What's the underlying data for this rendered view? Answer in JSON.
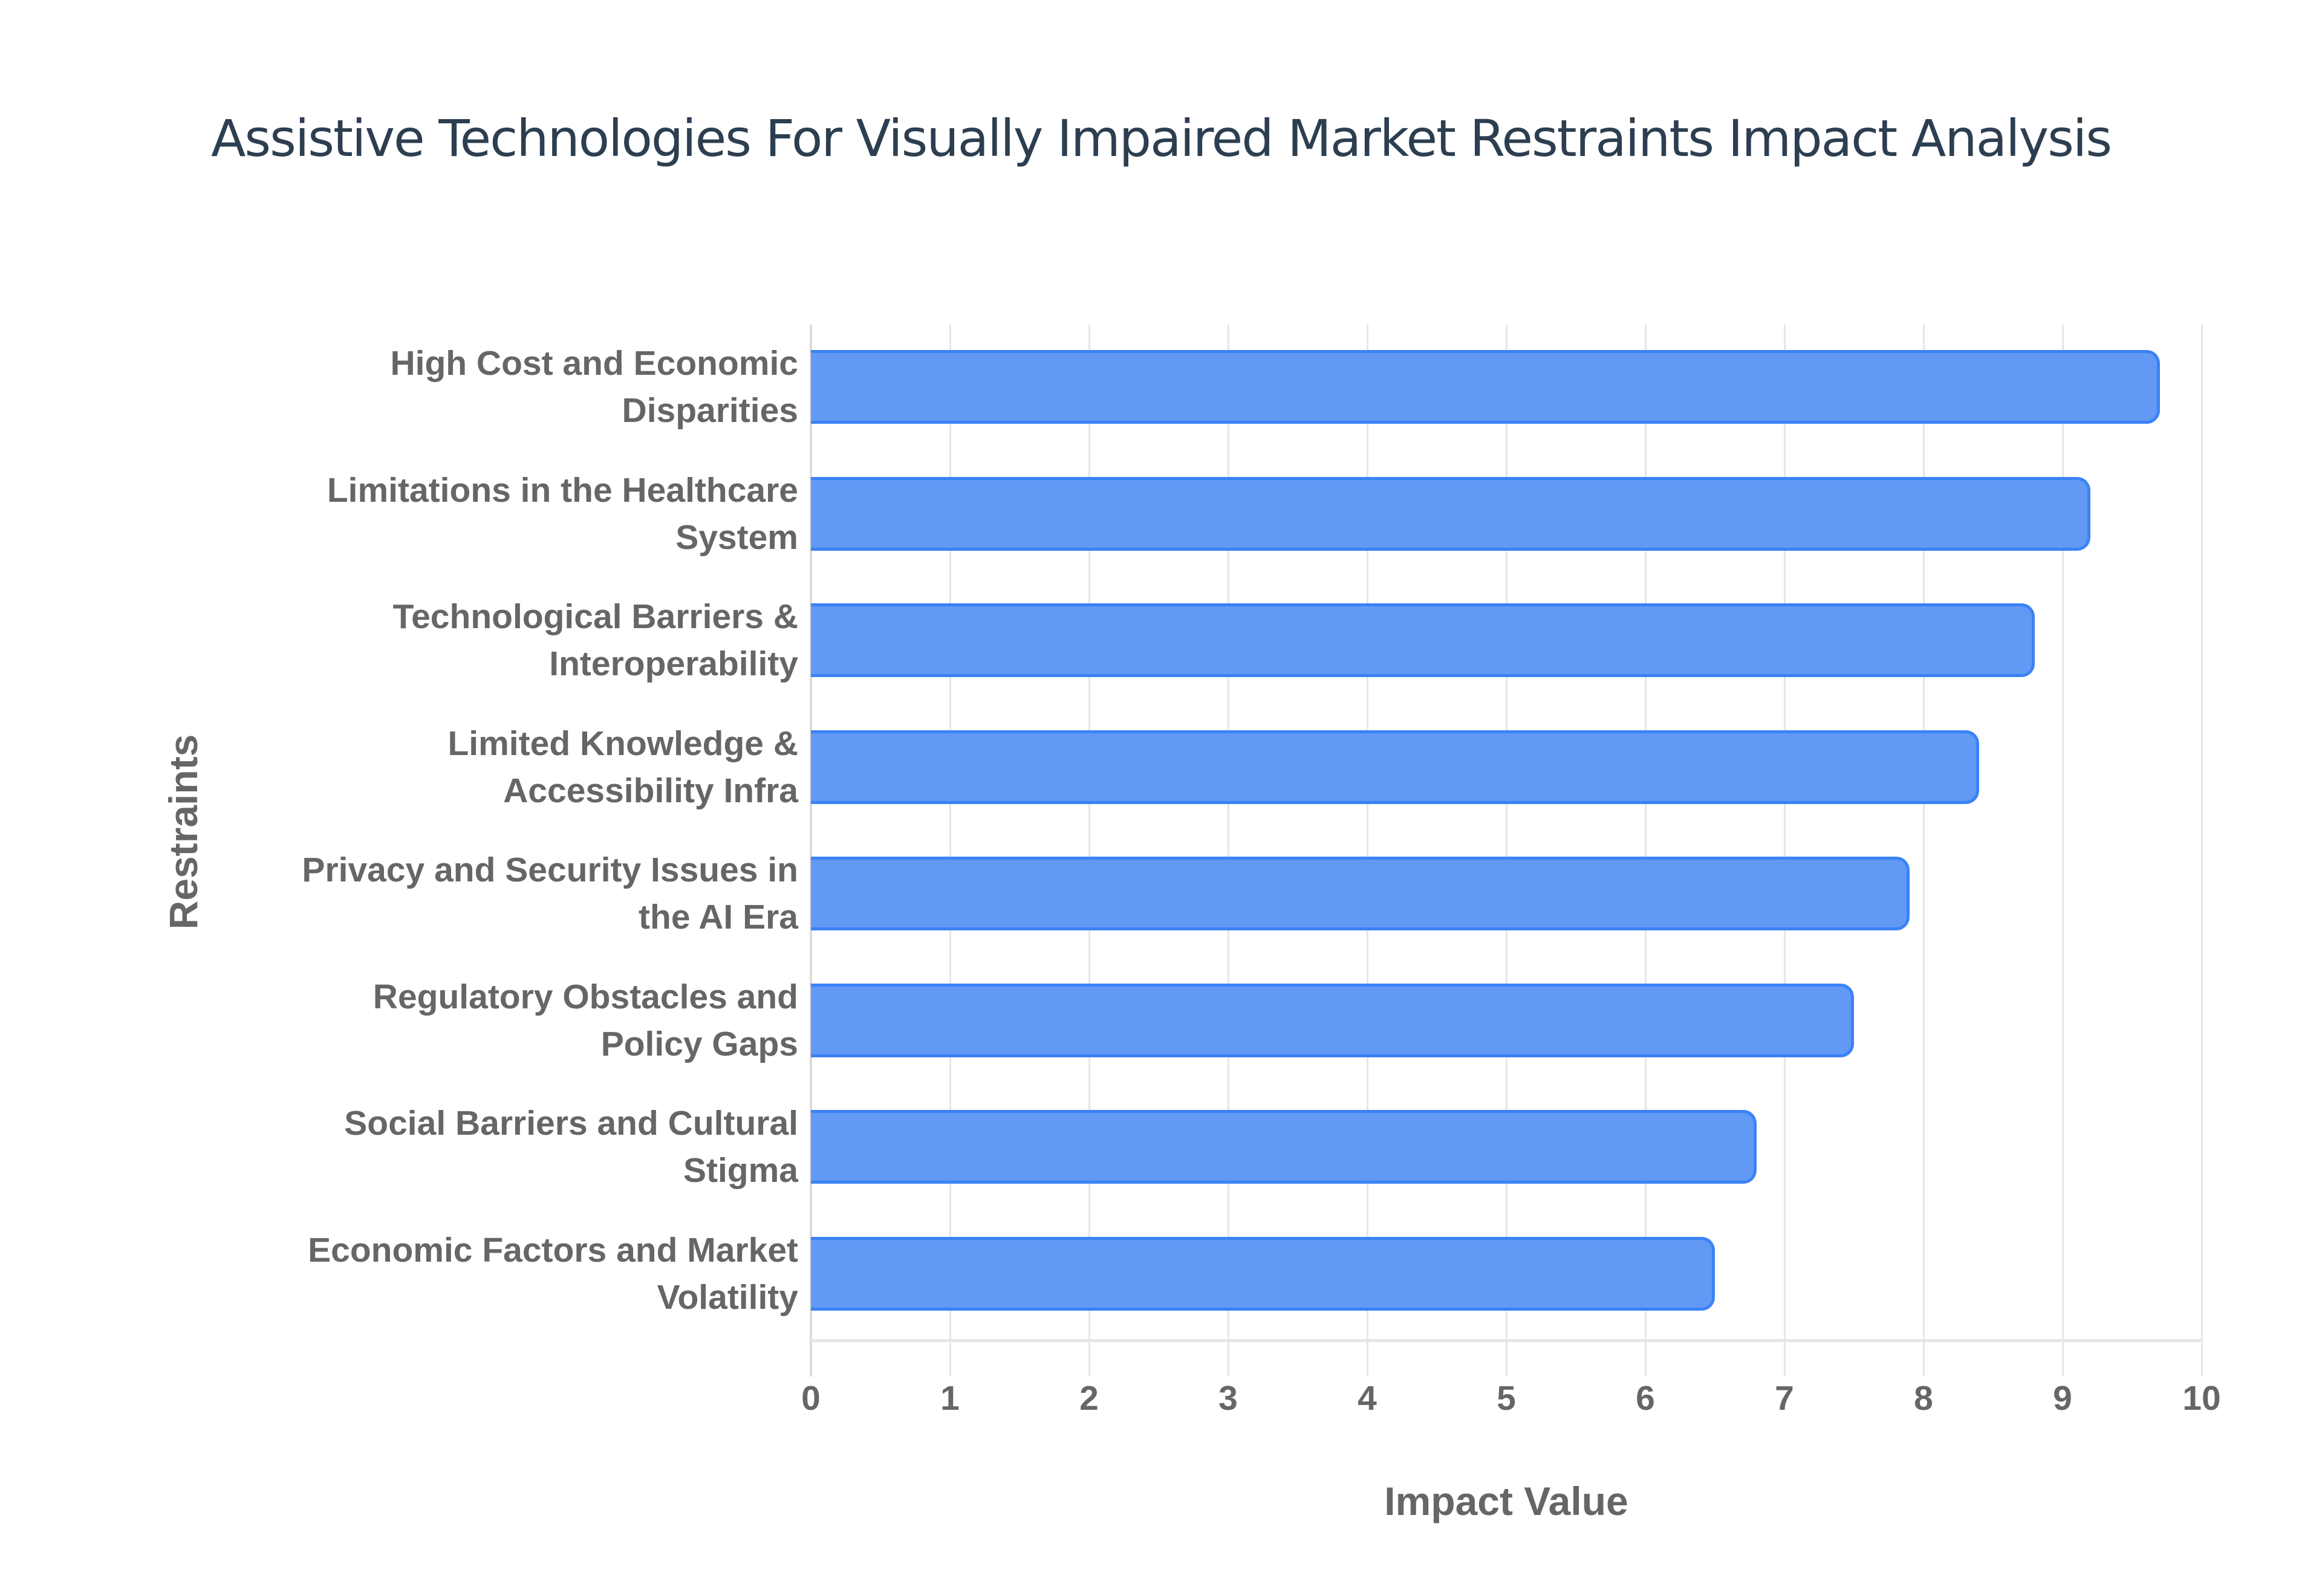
{
  "title": "Assistive Technologies For Visually Impaired Market Restraints Impact Analysis",
  "x_axis": {
    "title": "Impact Value",
    "ticks": [
      "0",
      "1",
      "2",
      "3",
      "4",
      "5",
      "6",
      "7",
      "8",
      "9",
      "10"
    ]
  },
  "y_axis": {
    "title": "Restraints"
  },
  "labels": [
    [
      "High Cost and Economic",
      "Disparities"
    ],
    [
      "Limitations in the Healthcare",
      "System"
    ],
    [
      "Technological Barriers &",
      "Interoperability"
    ],
    [
      "Limited Knowledge &",
      "Accessibility Infra"
    ],
    [
      "Privacy and Security Issues in",
      "the AI Era"
    ],
    [
      "Regulatory Obstacles and",
      "Policy Gaps"
    ],
    [
      "Social Barriers and Cultural",
      "Stigma"
    ],
    [
      "Economic Factors and Market",
      "Volatility"
    ]
  ],
  "colors": {
    "bar_fill": "#6199f5",
    "bar_border": "#3b82f6",
    "title": "#2c3e50",
    "axis_text": "#666666"
  },
  "chart_data": {
    "type": "bar",
    "orientation": "horizontal",
    "title": "Assistive Technologies For Visually Impaired Market Restraints Impact Analysis",
    "xlabel": "Impact Value",
    "ylabel": "Restraints",
    "xlim": [
      0,
      10
    ],
    "grid": true,
    "legend": null,
    "categories": [
      "High Cost and Economic Disparities",
      "Limitations in the Healthcare System",
      "Technological Barriers & Interoperability",
      "Limited Knowledge & Accessibility Infra",
      "Privacy and Security Issues in the AI Era",
      "Regulatory Obstacles and Policy Gaps",
      "Social Barriers and Cultural Stigma",
      "Economic Factors and Market Volatility"
    ],
    "values": [
      9.7,
      9.2,
      8.8,
      8.4,
      7.9,
      7.5,
      6.8,
      6.5
    ]
  }
}
